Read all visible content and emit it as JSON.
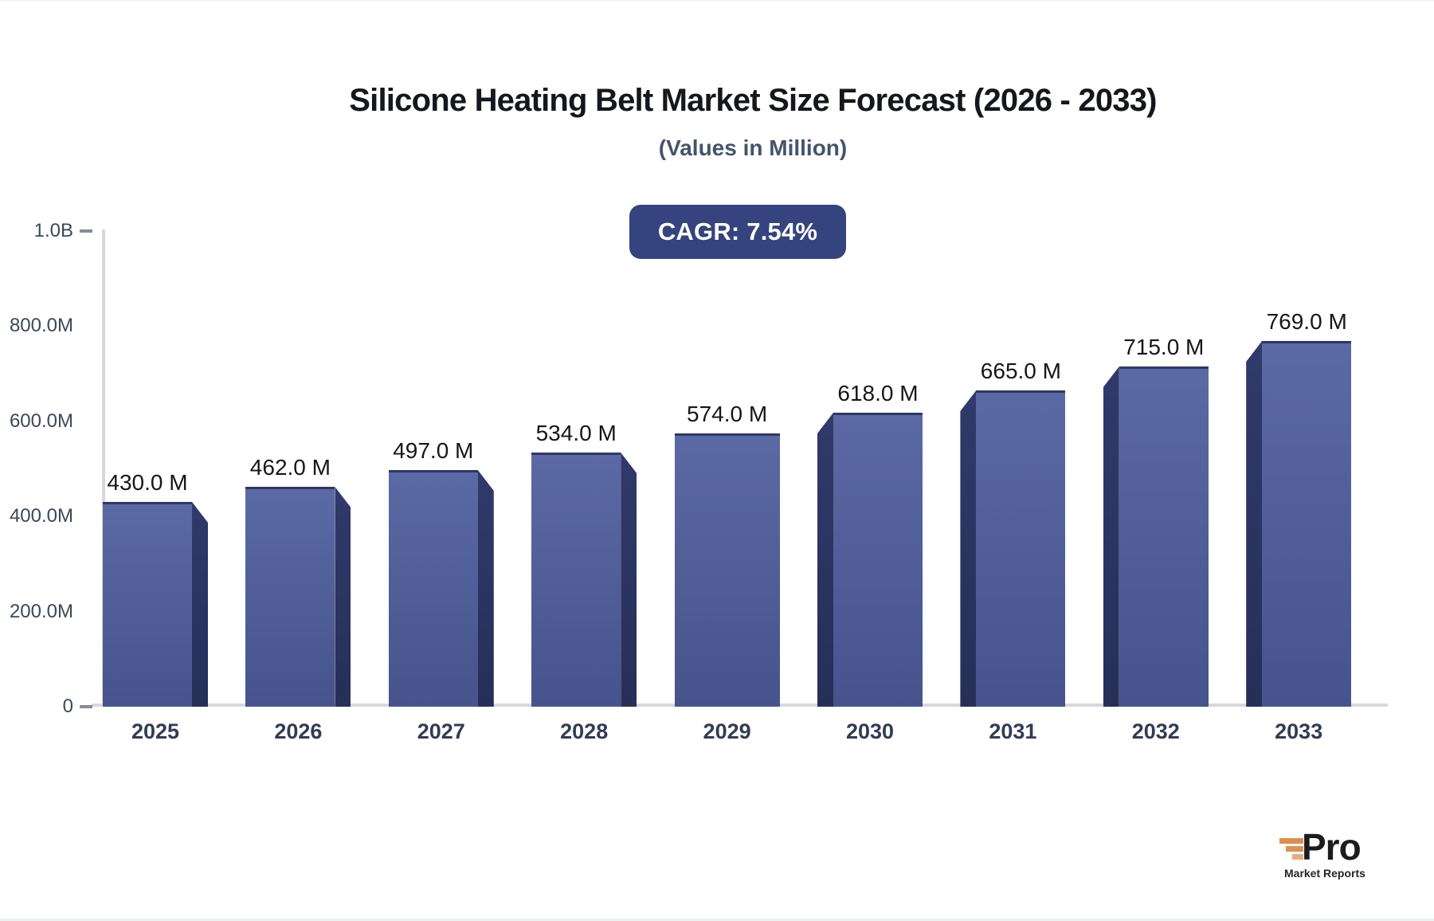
{
  "header": {
    "title": "Silicone Heating Belt Market Size Forecast (2026 - 2033)",
    "subtitle": "(Values in Million)",
    "cagr_label": "CAGR: 7.54%",
    "cagr_bg": "#35447f"
  },
  "chart_data": {
    "type": "bar",
    "title": "Silicone Heating Belt Market Size Forecast (2026 - 2033)",
    "subtitle": "(Values in Million)",
    "cagr_pct": 7.54,
    "categories": [
      "2025",
      "2026",
      "2027",
      "2028",
      "2029",
      "2030",
      "2031",
      "2032",
      "2033"
    ],
    "values": [
      430,
      462,
      497,
      534,
      574,
      618,
      665,
      715,
      769
    ],
    "value_labels": [
      "430.0 M",
      "462.0 M",
      "497.0 M",
      "534.0 M",
      "574.0 M",
      "618.0 M",
      "665.0 M",
      "715.0 M",
      "769.0 M"
    ],
    "xlabel": "",
    "ylabel": "",
    "ylim": [
      0,
      1000
    ],
    "yticks": [
      {
        "label": "1.0B",
        "value": 1000,
        "dash": true
      },
      {
        "label": "800.0M",
        "value": 800,
        "dash": false
      },
      {
        "label": "600.0M",
        "value": 600,
        "dash": false
      },
      {
        "label": "400.0M",
        "value": 400,
        "dash": false
      },
      {
        "label": "200.0M",
        "value": 200,
        "dash": false
      },
      {
        "label": "0",
        "value": 0,
        "dash": true
      }
    ],
    "grid": false,
    "legend": false,
    "colors": {
      "bar_face_top": "#5b69a4",
      "bar_face_bottom": "#46538c",
      "bar_side_top": "#303a6b",
      "bar_side_bottom": "#262f58",
      "bar_top_edge": "#2d3768",
      "axis_line": "#d7d8dd",
      "tick_dash": "#868d98",
      "tick_text": "#3d4857",
      "year_text": "#313c54",
      "value_text": "#14161b"
    }
  },
  "logo": {
    "brand": "Pro",
    "tagline": "Market Reports",
    "bar_colors": [
      "#dd8e4f",
      "#dd9254",
      "#e5ac7d"
    ],
    "text_color": "#1b1c20"
  }
}
